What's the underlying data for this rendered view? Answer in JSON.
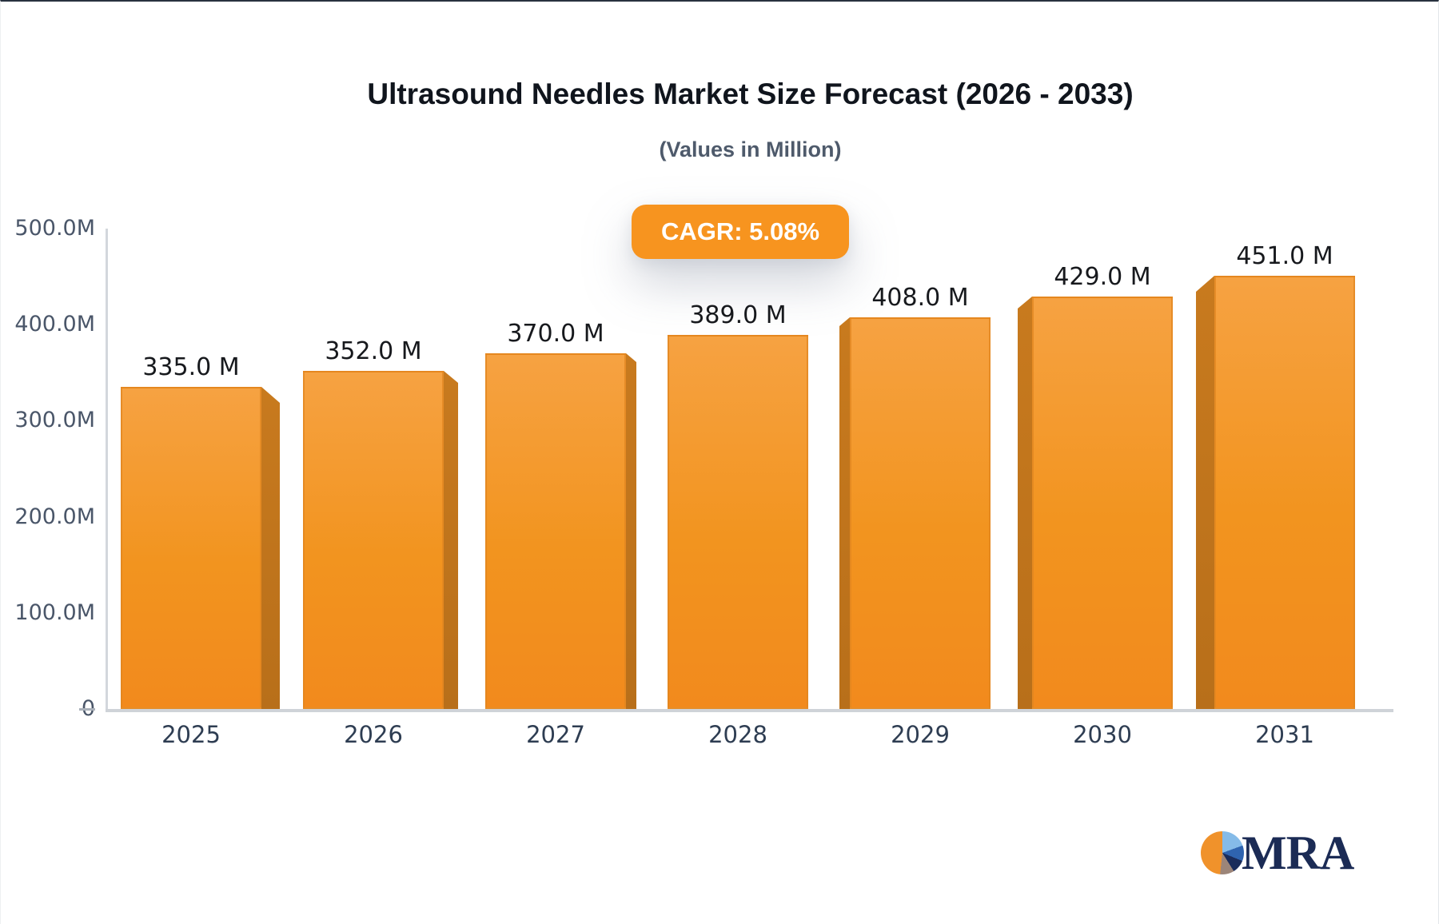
{
  "header": {
    "title": "Ultrasound Needles Market Size Forecast (2026 - 2033)",
    "subtitle": "(Values in Million)"
  },
  "badge": {
    "label": "CAGR: 5.08%",
    "bg": "#f7941f",
    "text_color": "#ffffff"
  },
  "chart_data": {
    "type": "bar",
    "title": "Ultrasound Needles Market Size Forecast (2026 - 2033)",
    "subtitle": "(Values in Million)",
    "categories": [
      "2025",
      "2026",
      "2027",
      "2028",
      "2029",
      "2030",
      "2031"
    ],
    "values": [
      335,
      352,
      370,
      389,
      408,
      429,
      451
    ],
    "value_labels": [
      "335.0 M",
      "352.0 M",
      "370.0 M",
      "389.0 M",
      "408.0 M",
      "429.0 M",
      "451.0 M"
    ],
    "y_ticks": [
      {
        "label": "500.0M",
        "value": 500
      },
      {
        "label": "400.0M",
        "value": 400
      },
      {
        "label": "300.0M",
        "value": 300
      },
      {
        "label": "200.0M",
        "value": 200
      },
      {
        "label": "100.0M",
        "value": 100
      },
      {
        "label": "0",
        "value": 0
      }
    ],
    "ylim": [
      0,
      500
    ],
    "xlabel": "",
    "ylabel": "",
    "grid": false,
    "legend": "none",
    "annotations": [
      "CAGR: 5.08%"
    ],
    "bar_color_top": "#f6a242",
    "bar_color_bottom": "#f28a1d",
    "bar_side_color": "#c0761d",
    "effect": "3d-perspective-center"
  },
  "logo": {
    "text": "MRA",
    "text_color": "#1b2b55",
    "pie_colors": [
      "#f0922b",
      "#85bbe8",
      "#2f64b0",
      "#1a2c5b",
      "#9c8579"
    ]
  }
}
